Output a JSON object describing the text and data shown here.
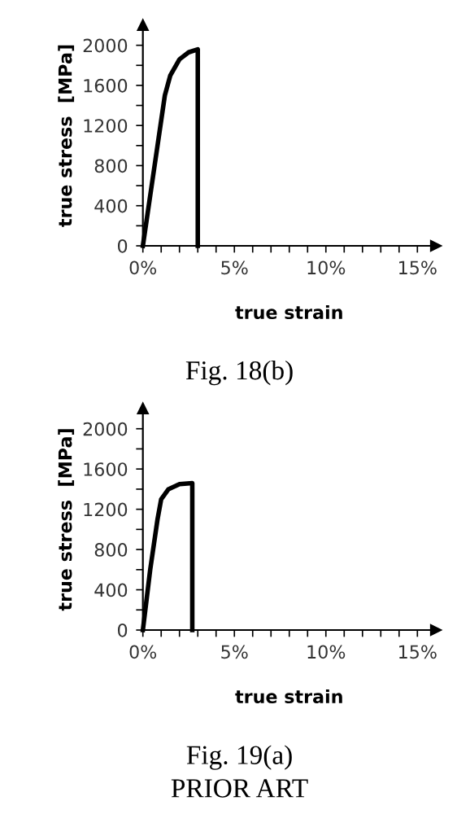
{
  "chart_data": [
    {
      "type": "line",
      "xlabel": "true strain",
      "ylabel": "true stress  [MPa]",
      "x": [
        0,
        0.4,
        0.8,
        1.2,
        1.5,
        2.0,
        2.5,
        3.0,
        3.0
      ],
      "series": [
        {
          "color": "#000000",
          "values": [
            0,
            500,
            1000,
            1500,
            1700,
            1860,
            1930,
            1960,
            0
          ]
        }
      ],
      "xlim": [
        0,
        16
      ],
      "ylim": [
        0,
        2200
      ],
      "xticks": [
        {
          "value": 0,
          "label": "0%"
        },
        {
          "value": 1,
          "label": null
        },
        {
          "value": 2,
          "label": null
        },
        {
          "value": 3,
          "label": null
        },
        {
          "value": 4,
          "label": null
        },
        {
          "value": 5,
          "label": "5%"
        },
        {
          "value": 6,
          "label": null
        },
        {
          "value": 7,
          "label": null
        },
        {
          "value": 8,
          "label": null
        },
        {
          "value": 9,
          "label": null
        },
        {
          "value": 10,
          "label": "10%"
        },
        {
          "value": 11,
          "label": null
        },
        {
          "value": 12,
          "label": null
        },
        {
          "value": 13,
          "label": null
        },
        {
          "value": 14,
          "label": null
        },
        {
          "value": 15,
          "label": "15%"
        }
      ],
      "yticks": [
        0,
        {
          "value": 200,
          "label": null
        },
        400,
        {
          "value": 600,
          "label": null
        },
        800,
        {
          "value": 1000,
          "label": null
        },
        1200,
        {
          "value": 1400,
          "label": null
        },
        1600,
        {
          "value": 1800,
          "label": null
        },
        2000
      ],
      "grid": false,
      "legend": false,
      "marker": "none",
      "line_style": "solid",
      "annotations": [
        "Fig. 18(b)"
      ]
    },
    {
      "type": "line",
      "xlabel": "true strain",
      "ylabel": "true stress  [MPa]",
      "x": [
        0,
        0.4,
        0.8,
        1.0,
        1.4,
        2.0,
        2.7,
        2.7
      ],
      "series": [
        {
          "color": "#000000",
          "values": [
            0,
            600,
            1100,
            1300,
            1400,
            1450,
            1460,
            0
          ]
        }
      ],
      "xlim": [
        0,
        16
      ],
      "ylim": [
        0,
        2200
      ],
      "xticks": [
        {
          "value": 0,
          "label": "0%"
        },
        {
          "value": 1,
          "label": null
        },
        {
          "value": 2,
          "label": null
        },
        {
          "value": 3,
          "label": null
        },
        {
          "value": 4,
          "label": null
        },
        {
          "value": 5,
          "label": "5%"
        },
        {
          "value": 6,
          "label": null
        },
        {
          "value": 7,
          "label": null
        },
        {
          "value": 8,
          "label": null
        },
        {
          "value": 9,
          "label": null
        },
        {
          "value": 10,
          "label": "10%"
        },
        {
          "value": 11,
          "label": null
        },
        {
          "value": 12,
          "label": null
        },
        {
          "value": 13,
          "label": null
        },
        {
          "value": 14,
          "label": null
        },
        {
          "value": 15,
          "label": "15%"
        }
      ],
      "yticks": [
        0,
        {
          "value": 200,
          "label": null
        },
        400,
        {
          "value": 600,
          "label": null
        },
        800,
        {
          "value": 1000,
          "label": null
        },
        1200,
        {
          "value": 1400,
          "label": null
        },
        1600,
        {
          "value": 1800,
          "label": null
        },
        2000
      ],
      "grid": false,
      "legend": false,
      "marker": "none",
      "line_style": "solid",
      "annotations": [
        "Fig. 19(a)",
        "PRIOR ART"
      ]
    }
  ]
}
